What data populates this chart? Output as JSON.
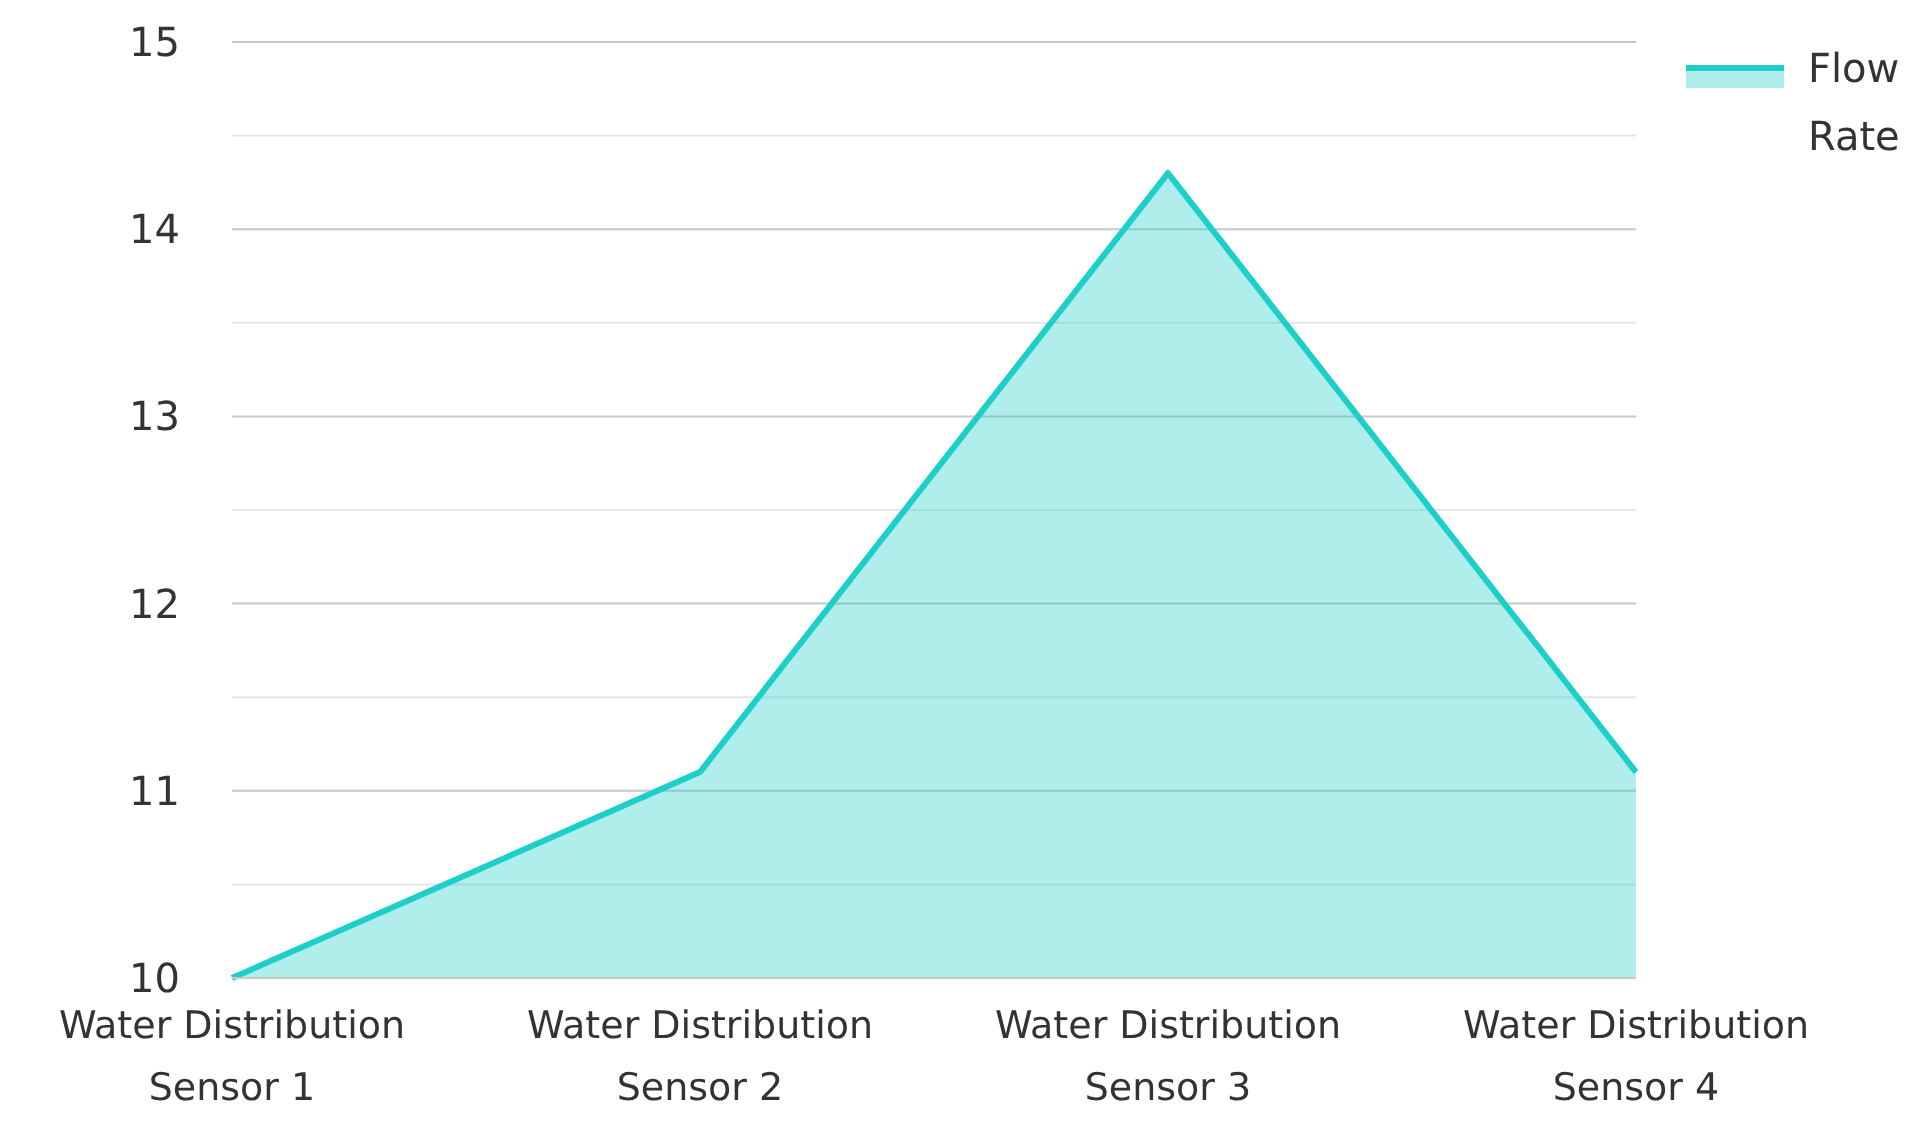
{
  "chart_data": {
    "type": "area",
    "categories": [
      "Water Distribution Sensor 1",
      "Water Distribution Sensor 2",
      "Water Distribution Sensor 3",
      "Water Distribution Sensor 4"
    ],
    "series": [
      {
        "name": "Flow Rate",
        "color": "#1ccfc9",
        "values": [
          10,
          11.1,
          14.3,
          11.1
        ]
      }
    ],
    "ylim": [
      10,
      15
    ],
    "yticks": [
      10,
      {
        "value": 10.5,
        "label": null
      },
      11,
      {
        "value": 11.5,
        "label": null
      },
      12,
      {
        "value": 12.5,
        "label": null
      },
      13,
      {
        "value": 13.5,
        "label": null
      },
      14,
      {
        "value": 14.5,
        "label": null
      },
      15
    ],
    "grid": "y",
    "legend": "top right"
  }
}
